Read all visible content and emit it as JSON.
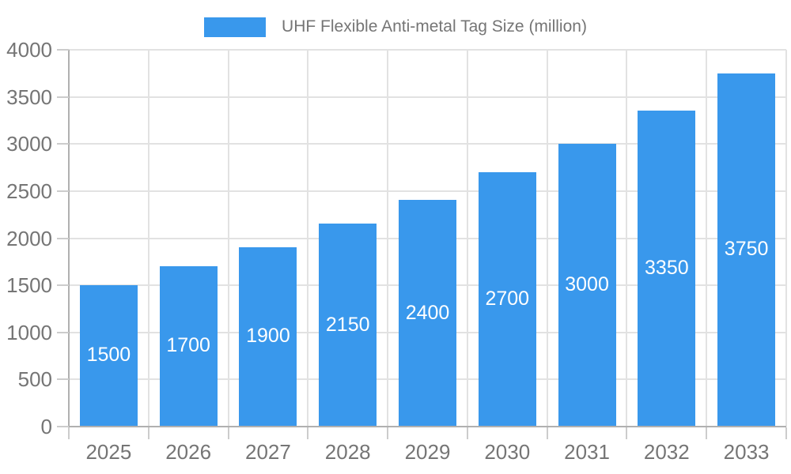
{
  "legend": {
    "label": "UHF Flexible Anti-metal Tag Size (million)"
  },
  "chart_data": {
    "type": "bar",
    "title": "UHF Flexible Anti-metal Tag Size (million)",
    "categories": [
      "2025",
      "2026",
      "2027",
      "2028",
      "2029",
      "2030",
      "2031",
      "2032",
      "2033"
    ],
    "values": [
      1500,
      1700,
      1900,
      2150,
      2400,
      2700,
      3000,
      3350,
      3750
    ],
    "xlabel": "",
    "ylabel": "",
    "ylim": [
      0,
      4000
    ],
    "yticks": [
      0,
      500,
      1000,
      1500,
      2000,
      2500,
      3000,
      3500,
      4000
    ],
    "grid": true,
    "legend_position": "top-center",
    "value_label_position": "inside-center"
  },
  "colors": {
    "bar": "#3998EC",
    "grid": "#E2E2E2",
    "axis_line": "#B0B0B0",
    "tick": "#CCCCCC",
    "axis_text": "#757575",
    "legend_text": "#757575",
    "value_label": "#FFFFFF",
    "background": "#FFFFFF"
  }
}
